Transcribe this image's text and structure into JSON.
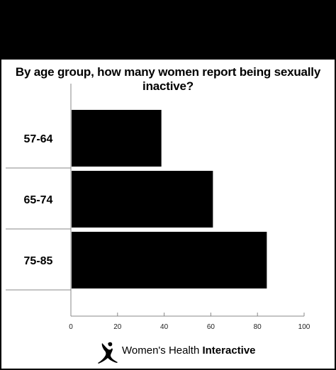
{
  "chart_data": {
    "type": "bar",
    "orientation": "horizontal",
    "title": "By age group, how many women report being sexually inactive?",
    "categories": [
      "57-64",
      "65-74",
      "75-85"
    ],
    "values": [
      38.5,
      60.6,
      83.7
    ],
    "xlim": [
      0,
      100
    ],
    "xticks": [
      0,
      20,
      40,
      60,
      80,
      100
    ],
    "xtick_labels": [
      "0",
      "20",
      "40",
      "60",
      "80",
      "100"
    ],
    "bar_color": "#000000",
    "grid": false
  },
  "logo": {
    "name_part1": "Women's Health ",
    "name_part2": "Interactive",
    "icon": "figure-stretching-icon"
  }
}
